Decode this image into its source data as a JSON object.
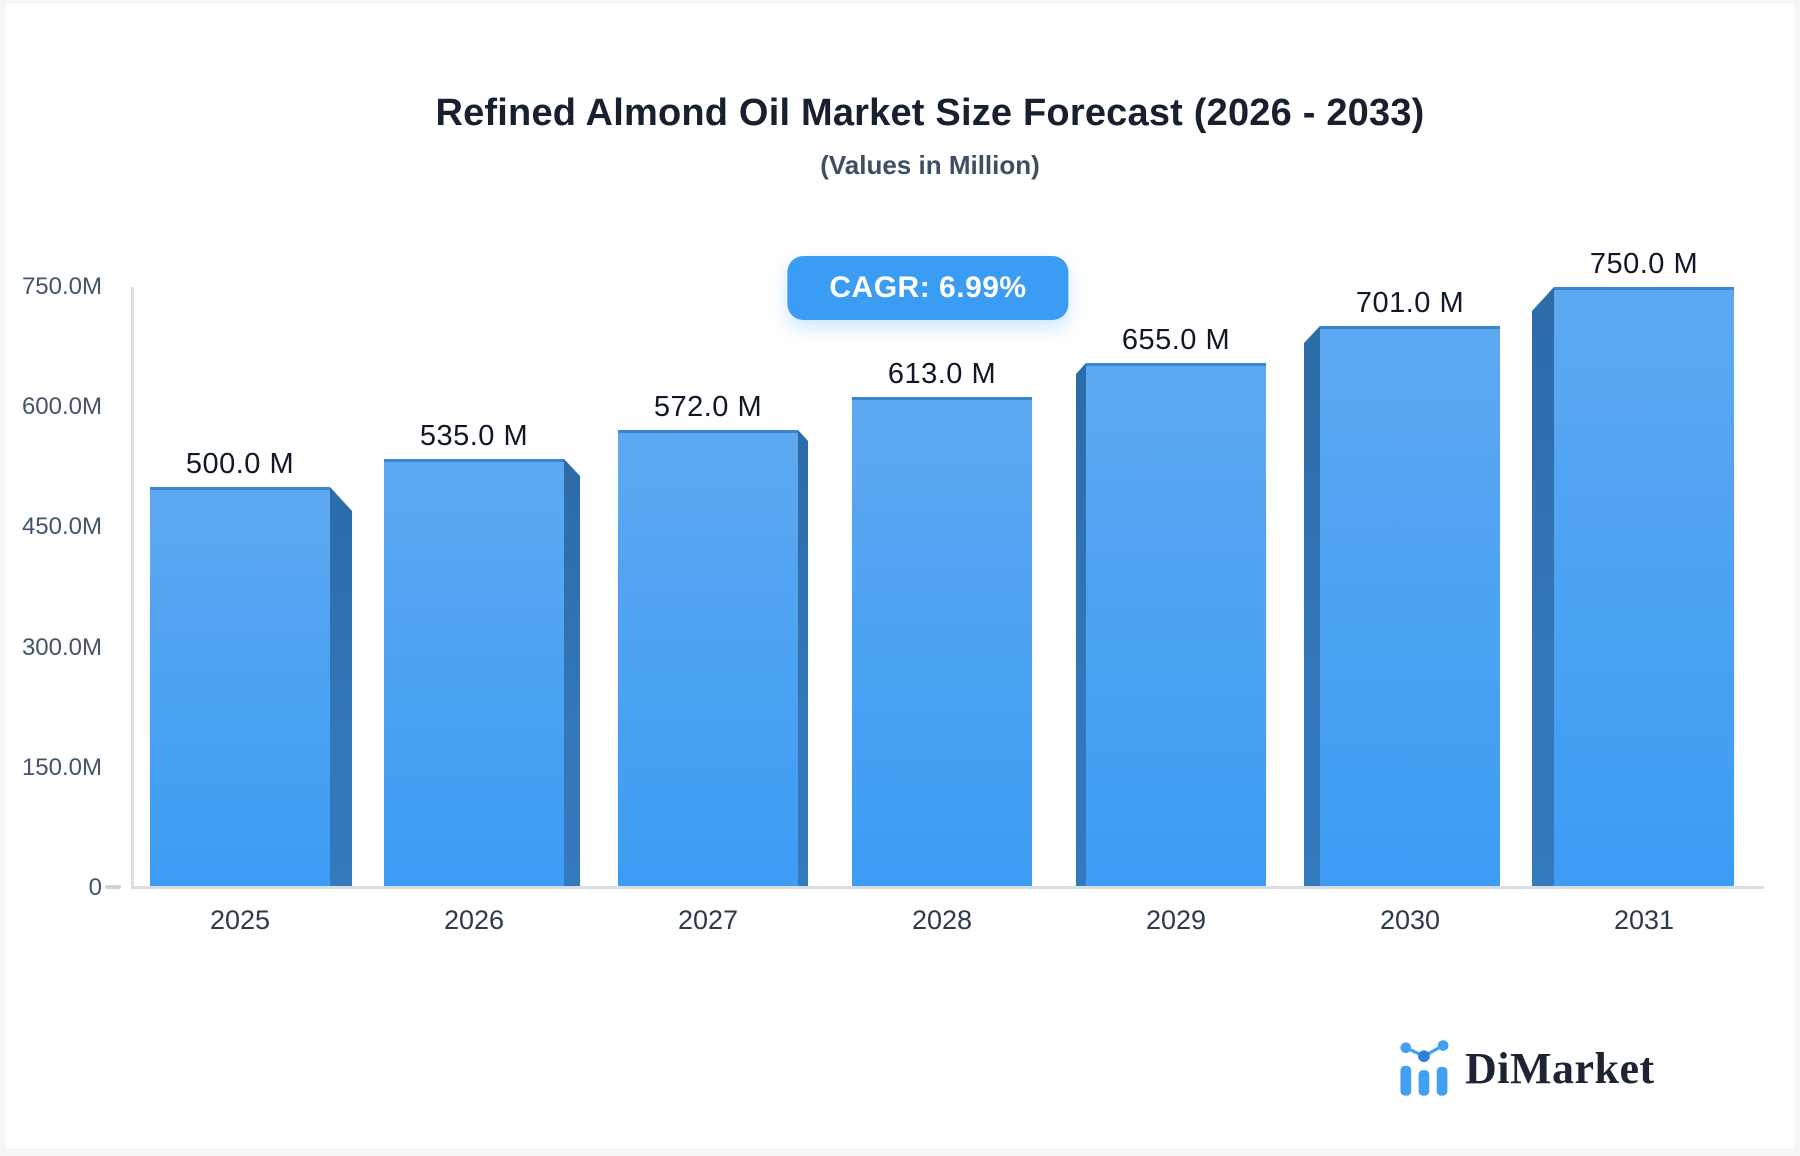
{
  "page": {
    "background": "#f6f7f9",
    "card_background": "#ffffff"
  },
  "header": {
    "title": "Refined Almond Oil Market Size Forecast (2026 - 2033)",
    "subtitle": "(Values in Million)"
  },
  "badge": {
    "label": "CAGR: 6.99%",
    "background": "#3b9cf4",
    "text_color": "#ffffff"
  },
  "chart_data": {
    "type": "bar",
    "title": "Refined Almond Oil Market Size Forecast (2026 - 2033)",
    "subtitle": "(Values in Million)",
    "categories": [
      "2025",
      "2026",
      "2027",
      "2028",
      "2029",
      "2030",
      "2031"
    ],
    "values": [
      500,
      535,
      572,
      613,
      655,
      701,
      750
    ],
    "value_labels": [
      "500.0 M",
      "535.0 M",
      "572.0 M",
      "613.0 M",
      "655.0 M",
      "701.0 M",
      "750.0 M"
    ],
    "xlabel": "",
    "ylabel": "",
    "ylim": [
      0,
      750
    ],
    "yticks": [
      {
        "value": 0,
        "label": "0"
      },
      {
        "value": 150,
        "label": "150.0M"
      },
      {
        "value": 300,
        "label": "300.0M"
      },
      {
        "value": 450,
        "label": "450.0M"
      },
      {
        "value": 600,
        "label": "600.0M"
      },
      {
        "value": 750,
        "label": "750.0M"
      }
    ],
    "grid": false,
    "legend": false,
    "annotations": [
      {
        "text": "CAGR: 6.99%",
        "position": "top-center-above-2028-bar"
      }
    ],
    "colors": {
      "bar_face_top": "#5da9f1",
      "bar_face_bottom": "#3d9cf4",
      "bar_top_edge": "#3a86cd",
      "bar_side_3d": "#2e6fae",
      "axis_line": "#dce1e8",
      "tick_text": "#44546a",
      "category_text": "#2c3a4e",
      "value_text": "#101828"
    }
  },
  "branding": {
    "name": "DiMarket",
    "icon": "bar-chart-logo-icon",
    "icon_color": "#42a0f2",
    "text_color": "#1d2535"
  }
}
